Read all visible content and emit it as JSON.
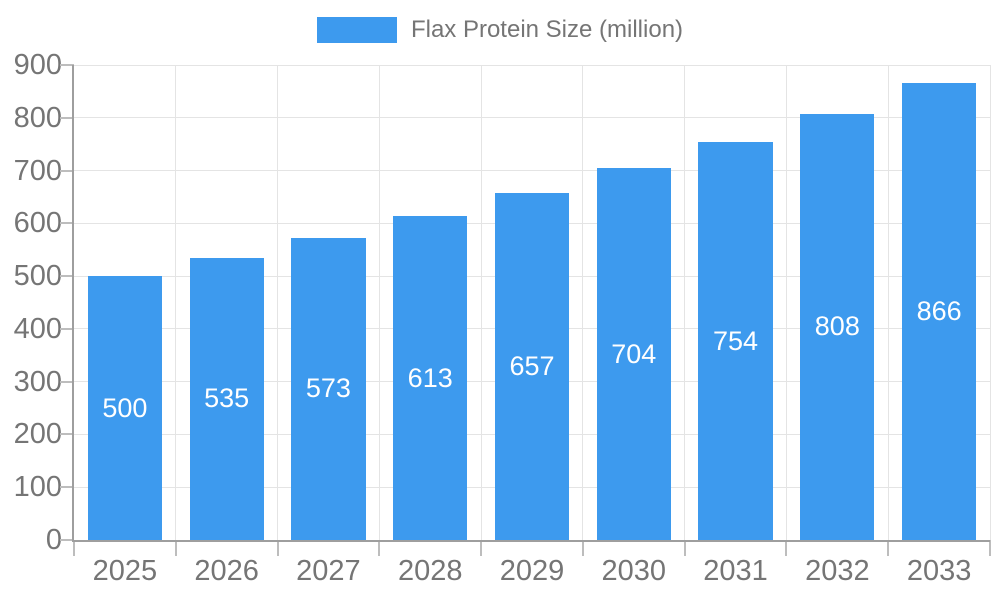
{
  "legend": {
    "label": "Flax Protein Size (million)"
  },
  "chart_data": {
    "type": "bar",
    "title": "Flax Protein Size (million)",
    "series_name": "Flax Protein Size (million)",
    "categories": [
      "2025",
      "2026",
      "2027",
      "2028",
      "2029",
      "2030",
      "2031",
      "2032",
      "2033"
    ],
    "values": [
      500,
      535,
      573,
      613,
      657,
      704,
      754,
      808,
      866
    ],
    "xlabel": "",
    "ylabel": "",
    "ylim": [
      0,
      900
    ],
    "yticks": [
      0,
      100,
      200,
      300,
      400,
      500,
      600,
      700,
      800,
      900
    ],
    "grid": true,
    "legend_position": "top",
    "value_labels": {
      "position": "inside-center",
      "color": "#ffffff"
    }
  },
  "colors": {
    "accent": "#3D9AEE",
    "grid": "#E4E4E4",
    "axis": "#9E9E9E",
    "tick": "#BDBDBD",
    "text": "#757575",
    "value_text": "#FFFFFF",
    "background": "#FFFFFF"
  }
}
